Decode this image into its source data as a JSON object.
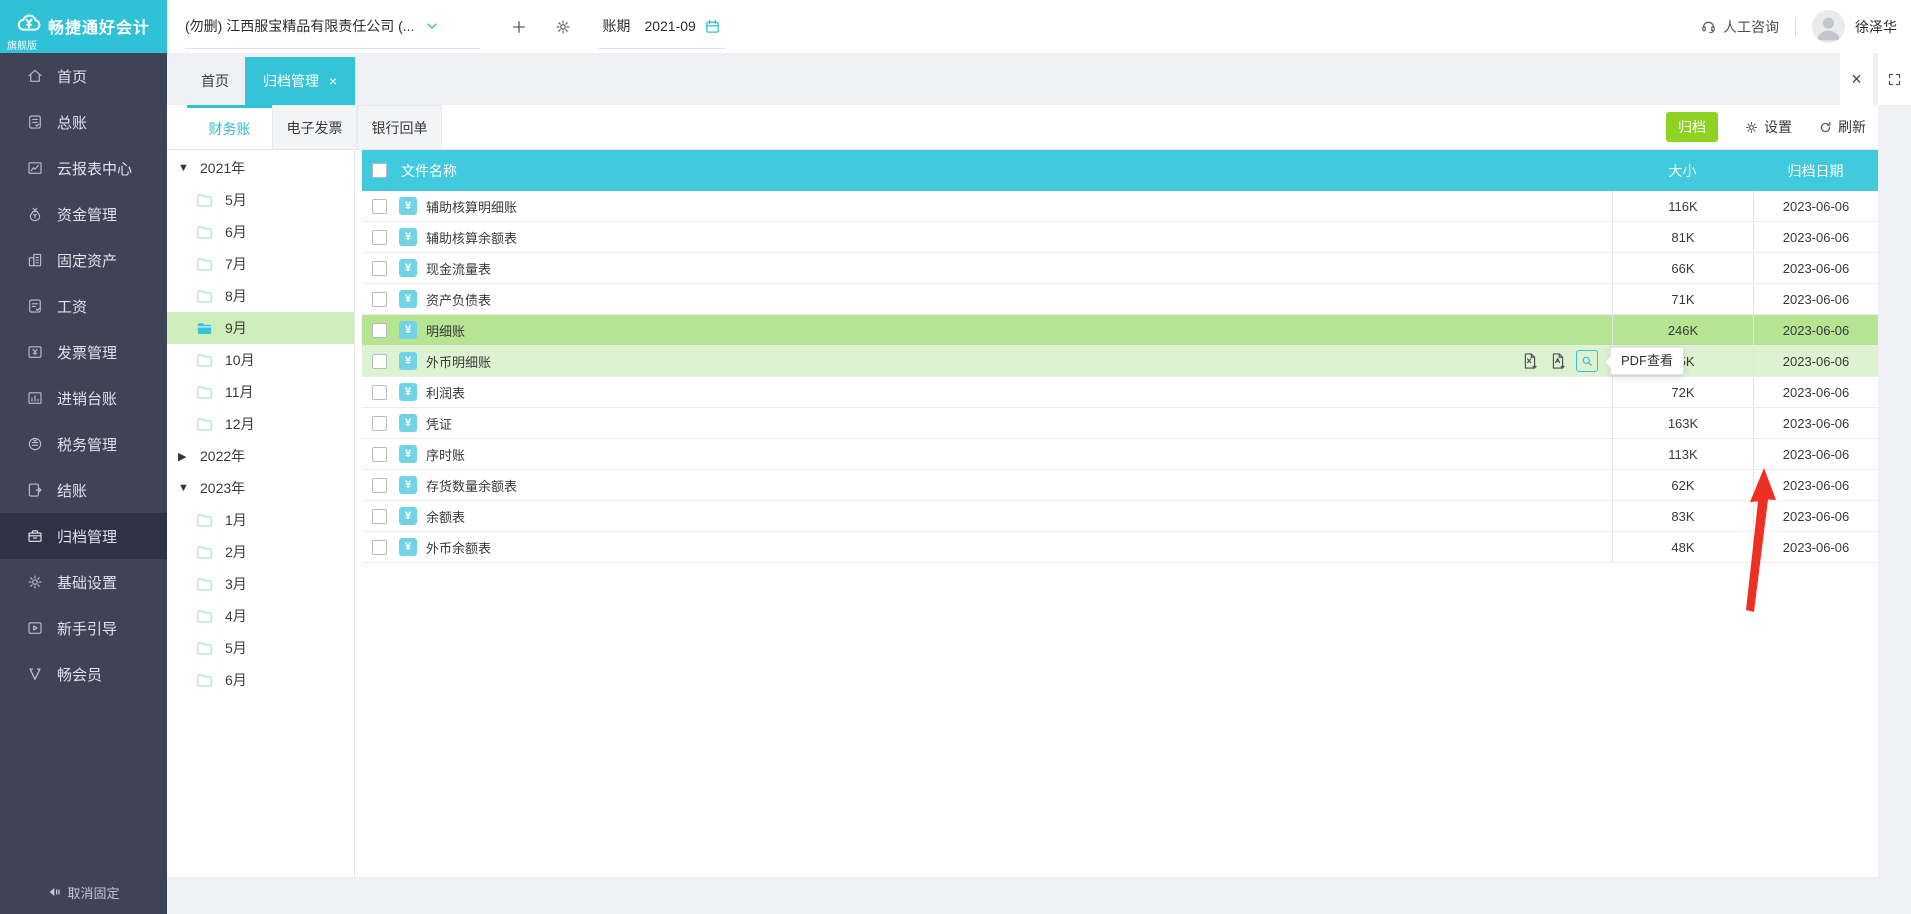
{
  "brand": {
    "title": "畅捷通好会计",
    "edition": "旗舰版",
    "logo_icon": "cloud-yuan-icon"
  },
  "topbar": {
    "company": "(勿删) 江西服宝精品有限责任公司 (...",
    "period_label": "账期",
    "period_value": "2021-09",
    "support_label": "人工咨询",
    "username": "徐泽华"
  },
  "page_tabs": [
    {
      "label": "首页",
      "active": false,
      "closable": false
    },
    {
      "label": "归档管理",
      "active": true,
      "closable": true
    }
  ],
  "window_controls": {
    "close": "×",
    "fullscreen": "fullscreen-icon"
  },
  "sidebar": {
    "items": [
      {
        "label": "首页",
        "icon": "home-icon",
        "active": false
      },
      {
        "label": "总账",
        "icon": "ledger-icon",
        "active": false
      },
      {
        "label": "云报表中心",
        "icon": "cloud-report-icon",
        "active": false
      },
      {
        "label": "资金管理",
        "icon": "funds-icon",
        "active": false
      },
      {
        "label": "固定资产",
        "icon": "fixed-assets-icon",
        "active": false
      },
      {
        "label": "工资",
        "icon": "salary-icon",
        "active": false
      },
      {
        "label": "发票管理",
        "icon": "invoice-icon",
        "active": false
      },
      {
        "label": "进销台账",
        "icon": "trade-ledger-icon",
        "active": false
      },
      {
        "label": "税务管理",
        "icon": "tax-icon",
        "active": false
      },
      {
        "label": "结账",
        "icon": "closing-icon",
        "active": false
      },
      {
        "label": "归档管理",
        "icon": "archive-icon",
        "active": true
      },
      {
        "label": "基础设置",
        "icon": "settings-icon",
        "active": false
      },
      {
        "label": "新手引导",
        "icon": "guide-icon",
        "active": false
      },
      {
        "label": "畅会员",
        "icon": "member-icon",
        "active": false
      }
    ],
    "unpin_label": "取消固定"
  },
  "subtabs": [
    {
      "label": "财务账",
      "active": true
    },
    {
      "label": "电子发票",
      "active": false
    },
    {
      "label": "银行回单",
      "active": false
    }
  ],
  "toolbar": {
    "archive": "归档",
    "settings": "设置",
    "refresh": "刷新"
  },
  "tree": {
    "rows": [
      {
        "type": "year",
        "label": "2021年",
        "state": "expanded"
      },
      {
        "type": "month",
        "label": "5月",
        "selected": false
      },
      {
        "type": "month",
        "label": "6月",
        "selected": false
      },
      {
        "type": "month",
        "label": "7月",
        "selected": false
      },
      {
        "type": "month",
        "label": "8月",
        "selected": false
      },
      {
        "type": "month",
        "label": "9月",
        "selected": true
      },
      {
        "type": "month",
        "label": "10月",
        "selected": false
      },
      {
        "type": "month",
        "label": "11月",
        "selected": false
      },
      {
        "type": "month",
        "label": "12月",
        "selected": false
      },
      {
        "type": "year",
        "label": "2022年",
        "state": "collapsed"
      },
      {
        "type": "year",
        "label": "2023年",
        "state": "expanded"
      },
      {
        "type": "month",
        "label": "1月",
        "selected": false
      },
      {
        "type": "month",
        "label": "2月",
        "selected": false
      },
      {
        "type": "month",
        "label": "3月",
        "selected": false
      },
      {
        "type": "month",
        "label": "4月",
        "selected": false
      },
      {
        "type": "month",
        "label": "5月",
        "selected": false
      },
      {
        "type": "month",
        "label": "6月",
        "selected": false
      }
    ]
  },
  "table": {
    "columns": [
      "文件名称",
      "大小",
      "归档日期"
    ],
    "rows": [
      {
        "name": "辅助核算明细账",
        "size": "116K",
        "date": "2023-06-06",
        "state": "normal"
      },
      {
        "name": "辅助核算余额表",
        "size": "81K",
        "date": "2023-06-06",
        "state": "normal"
      },
      {
        "name": "现金流量表",
        "size": "66K",
        "date": "2023-06-06",
        "state": "normal"
      },
      {
        "name": "资产负债表",
        "size": "71K",
        "date": "2023-06-06",
        "state": "normal"
      },
      {
        "name": "明细账",
        "size": "246K",
        "date": "2023-06-06",
        "state": "selected"
      },
      {
        "name": "外币明细账",
        "size": "45K",
        "date": "2023-06-06",
        "state": "hover"
      },
      {
        "name": "利润表",
        "size": "72K",
        "date": "2023-06-06",
        "state": "normal"
      },
      {
        "name": "凭证",
        "size": "163K",
        "date": "2023-06-06",
        "state": "normal"
      },
      {
        "name": "序时账",
        "size": "113K",
        "date": "2023-06-06",
        "state": "normal"
      },
      {
        "name": "存货数量余额表",
        "size": "62K",
        "date": "2023-06-06",
        "state": "normal"
      },
      {
        "name": "余额表",
        "size": "83K",
        "date": "2023-06-06",
        "state": "normal"
      },
      {
        "name": "外币余额表",
        "size": "48K",
        "date": "2023-06-06",
        "state": "normal"
      }
    ],
    "hover_actions": [
      "excel-download-icon",
      "pdf-download-icon",
      "pdf-preview-icon"
    ],
    "tooltip": "PDF查看"
  },
  "colors": {
    "accent_cyan": "#2fc1d6",
    "table_header": "#41c9de",
    "archive_button_green": "#8ed321",
    "row_selected_green": "#b7e493",
    "row_hover_green": "#ddf2d0",
    "tree_selected_green": "#cdeebb",
    "sidebar_bg": "#3f4356",
    "sidebar_active_bg": "#2e3245",
    "annotation_arrow_red": "#ee3023"
  }
}
